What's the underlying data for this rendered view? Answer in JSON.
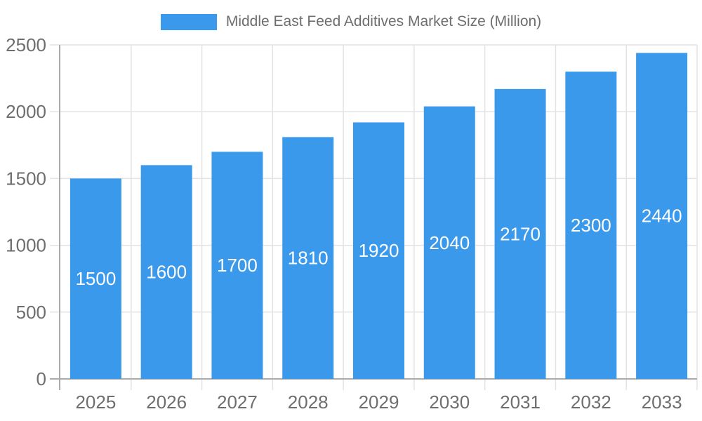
{
  "legend": {
    "label": "Middle East Feed Additives Market Size (Million)"
  },
  "chart_data": {
    "type": "bar",
    "title": "Middle East Feed Additives Market Size (Million)",
    "categories": [
      "2025",
      "2026",
      "2027",
      "2028",
      "2029",
      "2030",
      "2031",
      "2032",
      "2033"
    ],
    "values": [
      1500,
      1600,
      1700,
      1810,
      1920,
      2040,
      2170,
      2300,
      2440
    ],
    "value_labels": [
      "1500",
      "1600",
      "1700",
      "1810",
      "1920",
      "2040",
      "2170",
      "2300",
      "2440"
    ],
    "xlabel": "",
    "ylabel": "",
    "ylim": [
      0,
      2500
    ],
    "yticks": [
      0,
      500,
      1000,
      1500,
      2000,
      2500
    ],
    "ytick_labels": [
      "0",
      "500",
      "1000",
      "1500",
      "2000",
      "2500"
    ],
    "grid": true,
    "legend_position": "top",
    "colors": {
      "bar": "#3b99ec",
      "value_label": "#ffffff",
      "tick_label": "#6e6e6e",
      "legend_label": "#6e6e6e",
      "grid": "#e3e3e3",
      "axis": "#ababab",
      "background": "#ffffff"
    }
  }
}
